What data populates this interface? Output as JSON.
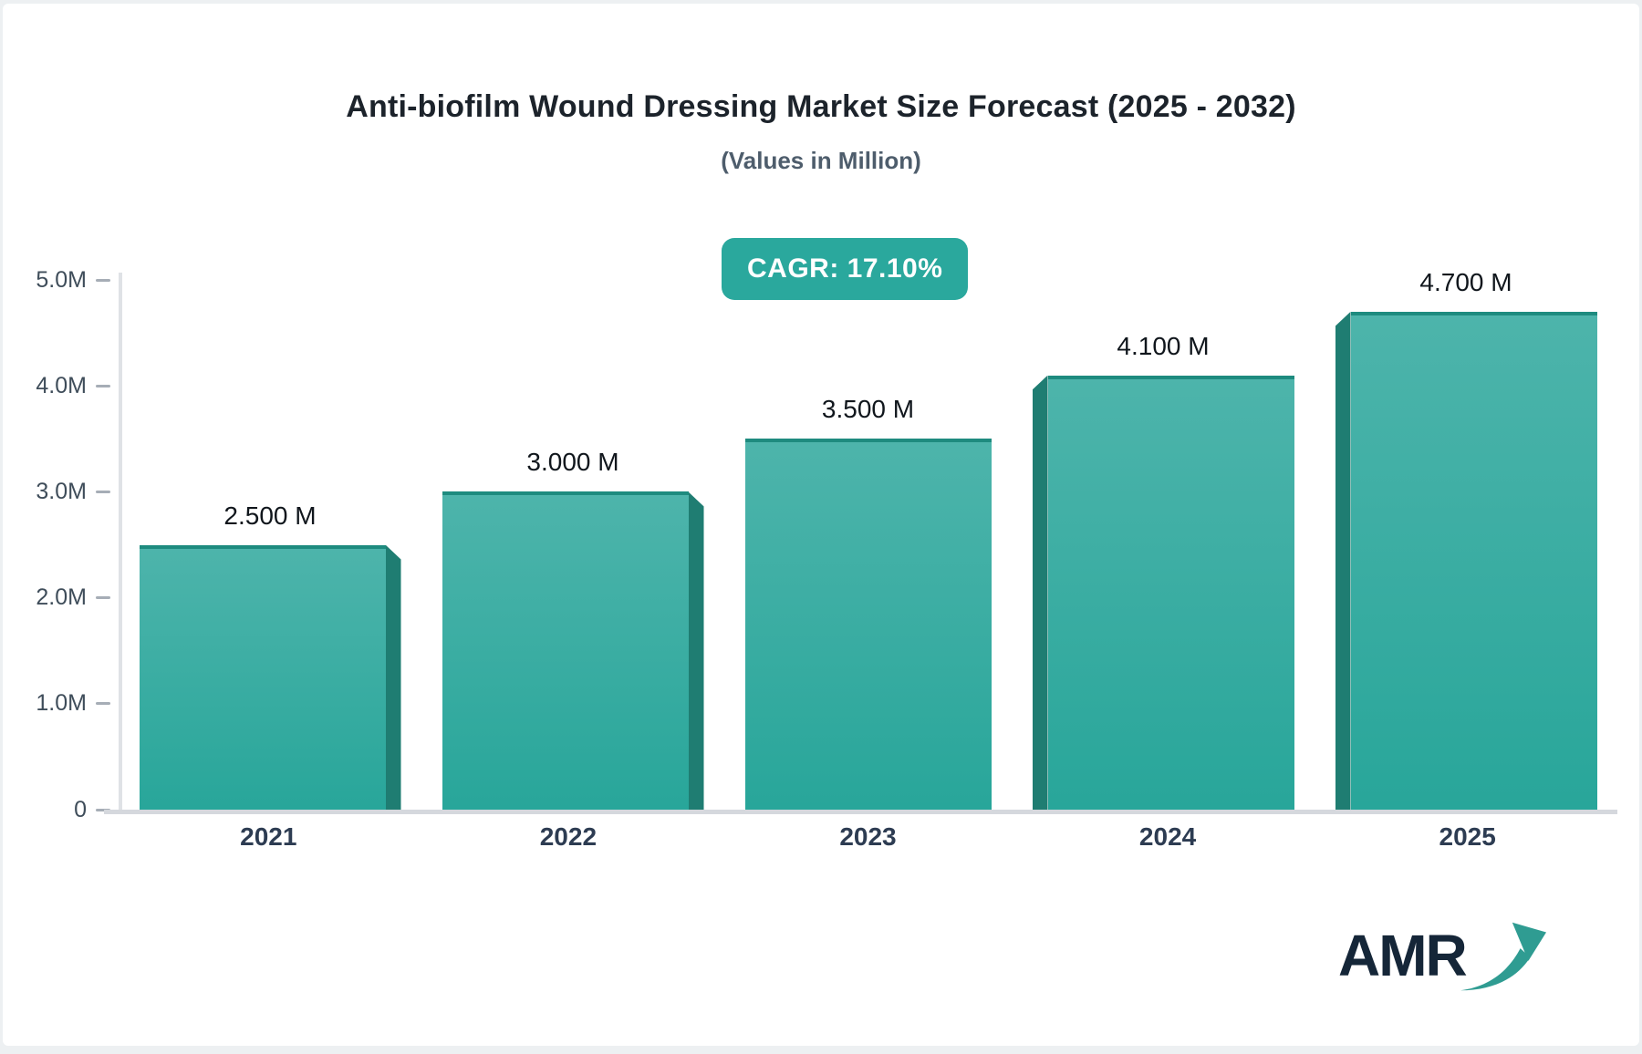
{
  "header": {
    "title": "Anti-biofilm Wound Dressing Market Size Forecast (2025 - 2032)",
    "subtitle": "(Values in Million)"
  },
  "cagr": {
    "label": "CAGR: 17.10%"
  },
  "chart_data": {
    "type": "bar",
    "title": "Anti-biofilm Wound Dressing Market Size Forecast (2025 - 2032)",
    "subtitle": "(Values in Million)",
    "annotation": "CAGR: 17.10%",
    "categories": [
      "2021",
      "2022",
      "2023",
      "2024",
      "2025"
    ],
    "values": [
      2.5,
      3.0,
      3.5,
      4.1,
      4.7
    ],
    "bar_labels": [
      "2.500 M",
      "3.000 M",
      "3.500 M",
      "4.100 M",
      "4.700 M"
    ],
    "xlabel": "",
    "ylabel": "",
    "ylim": [
      0,
      5
    ],
    "ytick_labels": [
      "5.0M",
      "4.0M",
      "3.0M",
      "2.0M",
      "1.0M",
      "0"
    ],
    "ytick_values": [
      5,
      4,
      3,
      2,
      1,
      0
    ],
    "grid": false,
    "legend": false,
    "bar_style": "3d-extruded-teal"
  },
  "branding": {
    "logo_text": "AMR",
    "logo_icon": "growth-arrow-icon"
  },
  "colors": {
    "page_bg": "#edf0f2",
    "card_bg": "#ffffff",
    "bar_top": "#4db4ab",
    "bar_bottom": "#28a69a",
    "bar_side": "#1f7d72",
    "bar_top_edge": "#1e8b7f",
    "badge_bg": "#2aa89d",
    "badge_text": "#ffffff",
    "baseline": "#d5d8dd",
    "axis_line": "#dfe2e6",
    "tick": "#a6adb6",
    "title": "#1c232b",
    "subtitle": "#4e5d6c",
    "ytick_label": "#3f4d5a",
    "year_label": "#2d3c52",
    "value_label": "#10161c",
    "logo_text": "#152638",
    "logo_arrow": "#2f9c92"
  }
}
